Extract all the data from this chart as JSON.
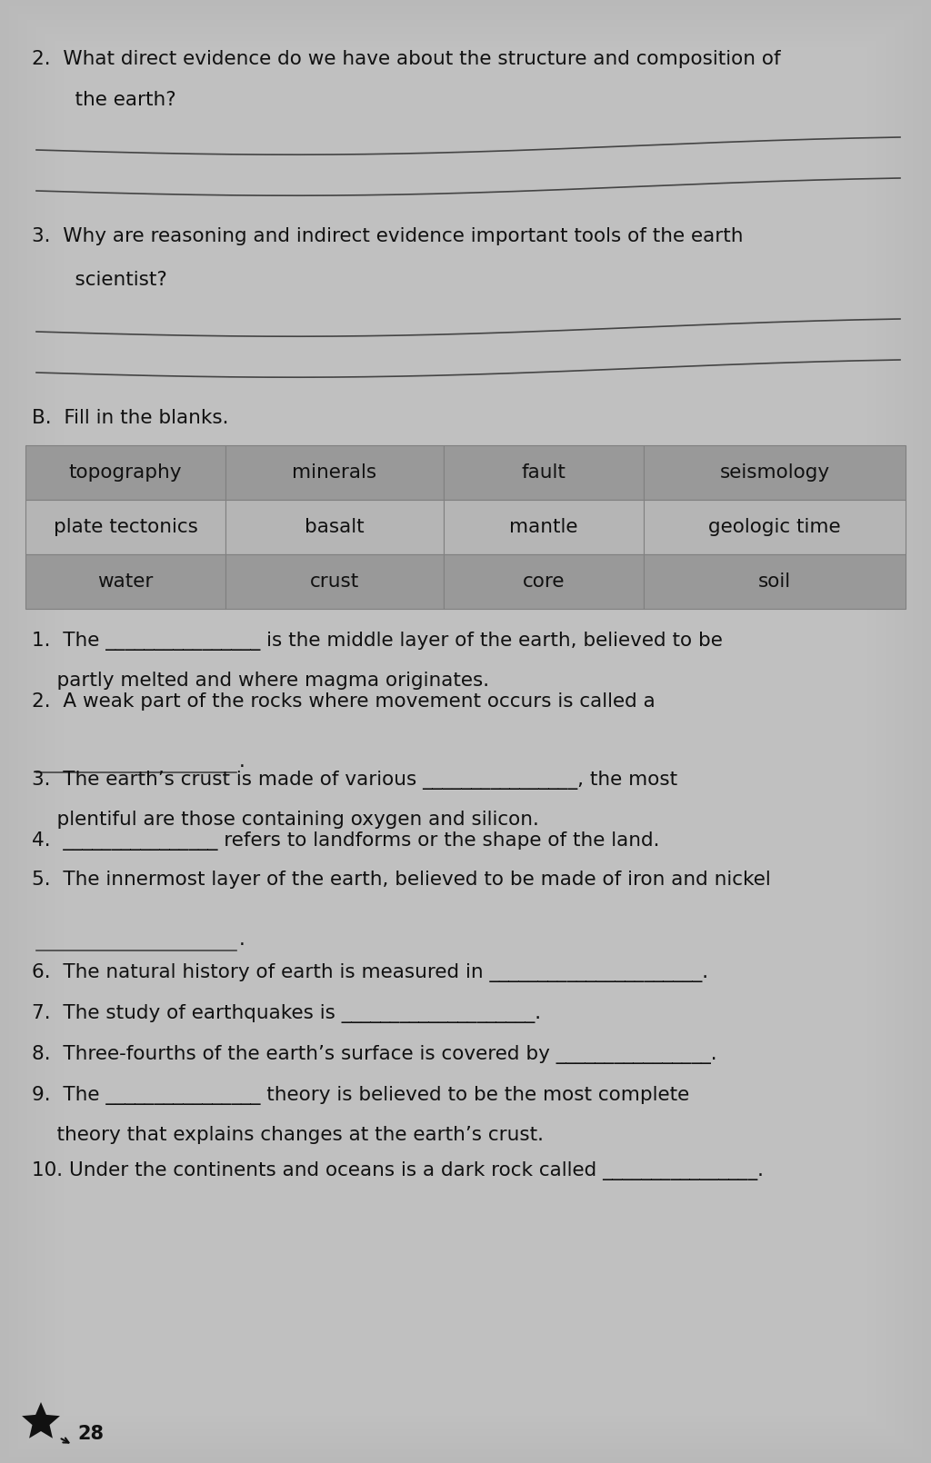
{
  "bg_color": "#b8b8b8",
  "q2_line1": "2.  What direct evidence do we have about the structure and composition of",
  "q2_line2": "    the earth?",
  "q3_line1": "3.  Why are reasoning and indirect evidence important tools of the earth",
  "q3_line2": "    scientist?",
  "section_header": "B.  Fill in the blanks.",
  "table_rows": [
    [
      "topography",
      "minerals",
      "fault",
      "seismology"
    ],
    [
      "plate tectonics",
      "basalt",
      "mantle",
      "geologic time"
    ],
    [
      "water",
      "crust",
      "core",
      "soil"
    ]
  ],
  "row_colors": [
    "#999999",
    "#b5b5b5",
    "#999999"
  ],
  "items_line1": [
    "1.  The ________________ is the middle layer of the earth, believed to be",
    "2.  A weak part of the rocks where movement occurs is called a",
    "3.  The earth’s crust is made of various ________________, the most",
    "4.  ________________ refers to landforms or the shape of the land.",
    "5.  The innermost layer of the earth, believed to be made of iron and nickel",
    "6.  The natural history of earth is measured in ______________________.",
    "7.  The study of earthquakes is ____________________.",
    "8.  Three-fourths of the earth’s surface is covered by ________________.",
    "9.  The ________________ theory is believed to be the most complete",
    "10. Under the continents and oceans is a dark rock called ________________."
  ],
  "items_line2": [
    "    partly melted and where magma originates.",
    "",
    "    plentiful are those containing oxygen and silicon.",
    "",
    "",
    "",
    "",
    "",
    "    theory that explains changes at the earth’s crust.",
    ""
  ],
  "items_has_blank_line": [
    false,
    true,
    false,
    false,
    true,
    false,
    false,
    false,
    false,
    false
  ],
  "page_number": "28"
}
